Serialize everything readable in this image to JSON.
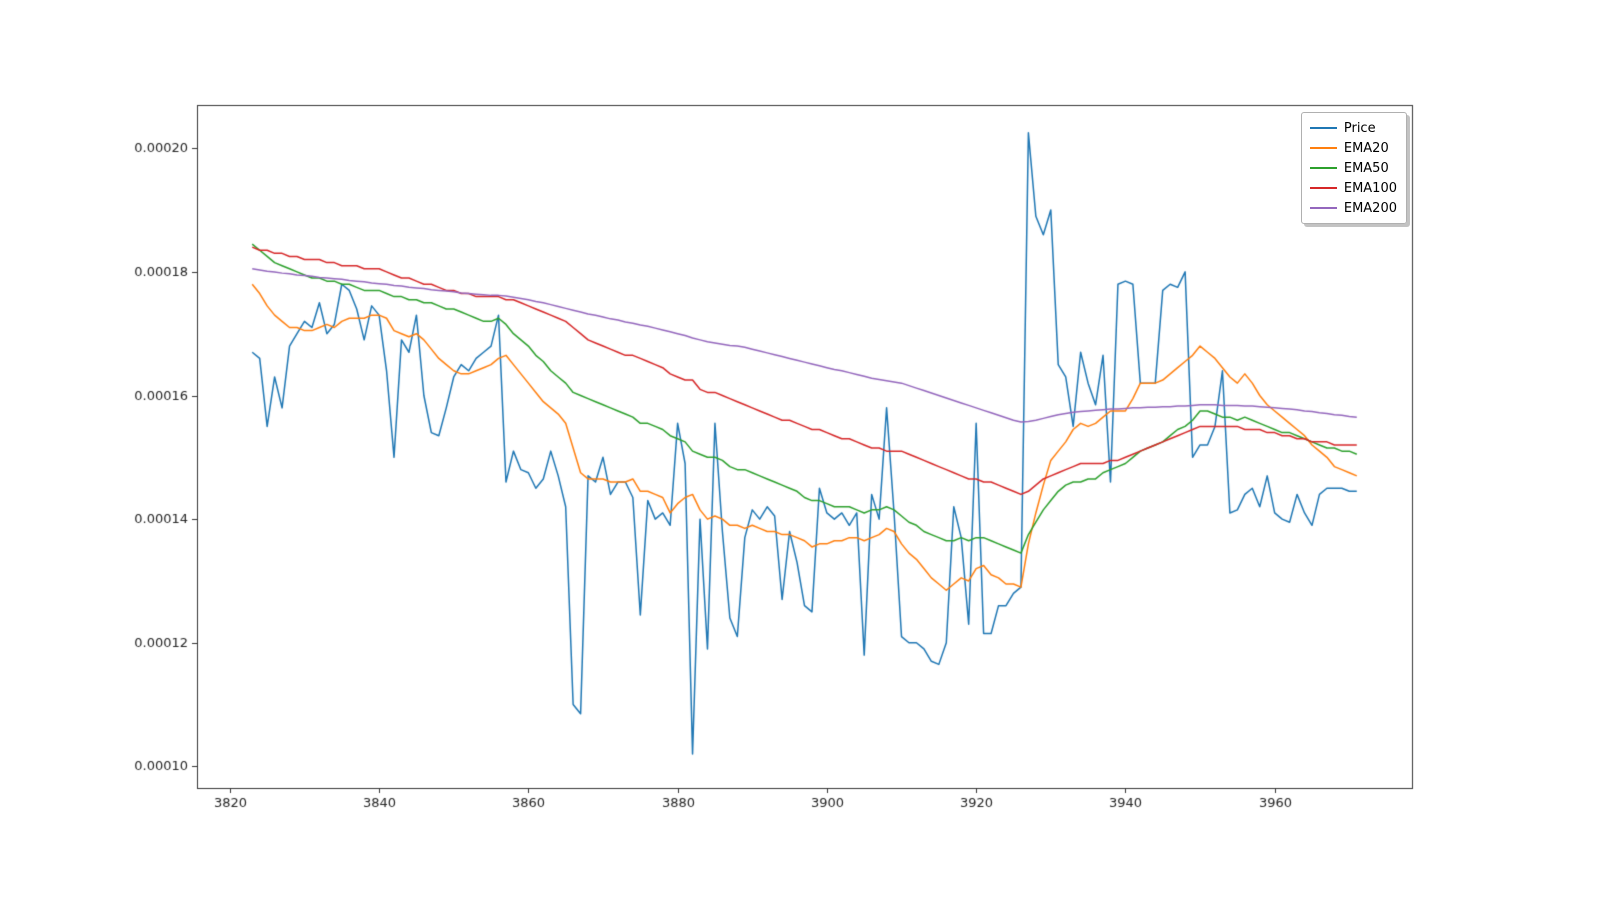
{
  "figure": {
    "background": "#ffffff",
    "spine_color": "#333333",
    "tick_text_color": "#262626"
  },
  "chart_data": {
    "type": "line",
    "title": "",
    "xlabel": "",
    "ylabel": "",
    "grid": false,
    "legend_position": "upper right",
    "x_start": 3823,
    "x_step": 1,
    "y_value_multiplier": 1e-06,
    "xlim": [
      3815.6,
      3978.4
    ],
    "ylim": [
      9.65e-05,
      0.000207
    ],
    "x_ticks": [
      3820,
      3840,
      3860,
      3880,
      3900,
      3920,
      3940,
      3960
    ],
    "x_tick_labels": [
      "3820",
      "3840",
      "3860",
      "3880",
      "3900",
      "3920",
      "3940",
      "3960"
    ],
    "y_ticks": [
      0.0001,
      0.00012,
      0.00014,
      0.00016,
      0.00018,
      0.0002
    ],
    "y_tick_labels": [
      "0.00010",
      "0.00012",
      "0.00014",
      "0.00016",
      "0.00018",
      "0.00020"
    ],
    "series": [
      {
        "name": "Price",
        "color": "#1f77b4",
        "values": [
          167,
          166,
          155,
          163,
          158,
          168,
          170,
          172,
          171,
          175,
          170,
          171.5,
          178,
          177,
          174,
          169,
          174.5,
          173,
          164,
          150,
          169,
          167,
          173,
          160,
          154,
          153.5,
          158,
          163,
          165,
          164,
          166,
          167,
          168,
          173,
          146,
          151,
          148,
          147.5,
          145,
          146.5,
          151,
          147,
          142,
          110,
          108.5,
          147,
          146,
          150,
          144,
          146,
          146,
          143.5,
          124.5,
          143,
          140,
          141,
          139,
          155.5,
          149,
          102,
          140,
          119,
          155.5,
          138,
          124,
          121,
          137,
          141.5,
          140,
          142,
          140.5,
          127,
          138,
          133,
          126,
          125,
          145,
          141,
          140,
          141,
          139,
          141,
          118,
          144,
          140,
          158,
          141,
          121,
          120,
          120,
          119,
          117,
          116.5,
          120,
          142,
          137,
          123,
          155.5,
          121.5,
          121.5,
          126,
          126,
          128,
          129,
          202.5,
          189,
          186,
          190,
          165,
          163,
          155,
          167,
          162,
          158.5,
          166.5,
          146,
          178,
          178.5,
          178,
          162,
          162,
          162,
          177,
          178,
          177.5,
          180,
          150,
          152,
          152,
          155,
          164,
          141,
          141.5,
          144,
          145,
          142,
          147,
          141,
          140,
          139.5,
          144,
          141,
          139,
          144,
          145,
          145,
          145,
          144.5,
          144.5
        ]
      },
      {
        "name": "EMA20",
        "color": "#ff7f0e",
        "values": [
          178,
          176.5,
          174.5,
          173,
          172,
          171,
          171,
          170.5,
          170.5,
          171,
          171.5,
          171,
          172,
          172.5,
          172.5,
          172.5,
          173,
          173,
          172.5,
          170.5,
          170,
          169.5,
          170,
          169,
          167.5,
          166,
          165,
          164,
          163.5,
          163.5,
          164,
          164.5,
          165,
          166,
          166.5,
          165,
          163.5,
          162,
          160.5,
          159,
          158,
          157,
          155.5,
          151.5,
          147.5,
          146.5,
          146.5,
          146.5,
          146,
          146,
          146,
          146.5,
          144.5,
          144.5,
          144,
          143.5,
          141,
          142.5,
          143.5,
          144,
          141.5,
          140,
          140.5,
          140,
          139,
          139,
          138.5,
          139,
          138.5,
          138,
          138,
          137.5,
          137.5,
          137,
          136.5,
          135.5,
          136,
          136,
          136.5,
          136.5,
          137,
          137,
          136.5,
          137,
          137.5,
          138.5,
          138,
          136,
          134.5,
          133.5,
          132,
          130.5,
          129.5,
          128.5,
          129.5,
          130.5,
          130,
          132,
          132.5,
          131,
          130.5,
          129.5,
          129.5,
          129,
          136,
          141,
          145.5,
          149.5,
          151,
          152.5,
          154.5,
          155.5,
          155,
          155.5,
          156.5,
          157.5,
          157.5,
          157.5,
          159.5,
          162,
          162,
          162,
          162.5,
          163.5,
          164.5,
          165.5,
          166.5,
          168,
          167,
          166,
          164.5,
          163,
          162,
          163.5,
          162,
          160,
          158.5,
          157.5,
          156.5,
          155.5,
          154.5,
          153.5,
          152,
          151,
          150,
          148.5,
          148,
          147.5,
          147
        ]
      },
      {
        "name": "EMA50",
        "color": "#2ca02c",
        "values": [
          184.5,
          183.5,
          182.5,
          181.5,
          181,
          180.5,
          180,
          179.5,
          179,
          179,
          178.5,
          178.5,
          178,
          178,
          177.5,
          177,
          177,
          177,
          176.5,
          176,
          176,
          175.5,
          175.5,
          175,
          175,
          174.5,
          174,
          174,
          173.5,
          173,
          172.5,
          172,
          172,
          172.5,
          171.5,
          170,
          169,
          168,
          166.5,
          165.5,
          164,
          163,
          162,
          160.5,
          160,
          159.5,
          159,
          158.5,
          158,
          157.5,
          157,
          156.5,
          155.5,
          155.5,
          155,
          154.5,
          153.5,
          153,
          152.5,
          151,
          150.5,
          150,
          150,
          149.5,
          148.5,
          148,
          148,
          147.5,
          147,
          146.5,
          146,
          145.5,
          145,
          144.5,
          143.5,
          143,
          143,
          142.5,
          142,
          142,
          142,
          141.5,
          141,
          141.5,
          141.5,
          142,
          141.5,
          140.5,
          139.5,
          139,
          138,
          137.5,
          137,
          136.5,
          136.5,
          137,
          136.5,
          137,
          137,
          136.5,
          136,
          135.5,
          135,
          134.5,
          137.5,
          139.5,
          141.5,
          143,
          144.5,
          145.5,
          146,
          146,
          146.5,
          146.5,
          147.5,
          148,
          148.5,
          149,
          150,
          151,
          151.5,
          152,
          152.5,
          153.5,
          154.5,
          155,
          156,
          157.5,
          157.5,
          157,
          156.5,
          156.5,
          156,
          156.5,
          156,
          155.5,
          155,
          154.5,
          154,
          154,
          153.5,
          153,
          152.5,
          152,
          151.5,
          151.5,
          151,
          151,
          150.5
        ]
      },
      {
        "name": "EMA100",
        "color": "#d62728",
        "values": [
          184,
          183.5,
          183.5,
          183,
          183,
          182.5,
          182.5,
          182,
          182,
          182,
          181.5,
          181.5,
          181,
          181,
          181,
          180.5,
          180.5,
          180.5,
          180,
          179.5,
          179,
          179,
          178.5,
          178,
          178,
          177.5,
          177,
          177,
          176.5,
          176.5,
          176,
          176,
          176,
          176,
          175.5,
          175.5,
          175,
          174.5,
          174,
          173.5,
          173,
          172.5,
          172,
          171,
          170,
          169,
          168.5,
          168,
          167.5,
          167,
          166.5,
          166.5,
          166,
          165.5,
          165,
          164.5,
          163.5,
          163,
          162.5,
          162.5,
          161,
          160.5,
          160.5,
          160,
          159.5,
          159,
          158.5,
          158,
          157.5,
          157,
          156.5,
          156,
          156,
          155.5,
          155,
          154.5,
          154.5,
          154,
          153.5,
          153,
          153,
          152.5,
          152,
          151.5,
          151.5,
          151,
          151,
          151,
          150.5,
          150,
          149.5,
          149,
          148.5,
          148,
          147.5,
          147,
          146.5,
          146.5,
          146,
          146,
          145.5,
          145,
          144.5,
          144,
          144.5,
          145.5,
          146.5,
          147,
          147.5,
          148,
          148.5,
          149,
          149,
          149,
          149,
          149.5,
          149.5,
          150,
          150.5,
          151,
          151.5,
          152,
          152.5,
          153,
          153.5,
          154,
          154.5,
          155,
          155,
          155,
          155,
          155,
          155,
          154.5,
          154.5,
          154.5,
          154,
          154,
          153.5,
          153.5,
          153,
          153,
          152.5,
          152.5,
          152.5,
          152,
          152,
          152,
          152
        ]
      },
      {
        "name": "EMA200",
        "color": "#9467bd",
        "values": [
          180.5,
          180.3,
          180.1,
          180,
          179.8,
          179.7,
          179.5,
          179.4,
          179.3,
          179.1,
          179,
          178.9,
          178.8,
          178.6,
          178.5,
          178.4,
          178.2,
          178.1,
          178,
          177.8,
          177.7,
          177.5,
          177.4,
          177.3,
          177.1,
          177,
          176.9,
          176.8,
          176.6,
          176.5,
          176.4,
          176.3,
          176.2,
          176.2,
          176.1,
          175.9,
          175.7,
          175.5,
          175.2,
          175,
          174.7,
          174.4,
          174.1,
          173.8,
          173.5,
          173.2,
          173,
          172.7,
          172.4,
          172.2,
          171.9,
          171.7,
          171.4,
          171.2,
          170.9,
          170.6,
          170.3,
          170,
          169.7,
          169.3,
          169,
          168.7,
          168.5,
          168.3,
          168.1,
          168,
          167.8,
          167.5,
          167.2,
          166.9,
          166.6,
          166.3,
          166,
          165.7,
          165.4,
          165.1,
          164.8,
          164.5,
          164.2,
          164,
          163.7,
          163.4,
          163.1,
          162.8,
          162.6,
          162.4,
          162.2,
          162,
          161.6,
          161.2,
          160.8,
          160.4,
          160,
          159.6,
          159.2,
          158.8,
          158.4,
          158,
          157.6,
          157.2,
          156.8,
          156.4,
          156,
          155.7,
          155.8,
          156,
          156.3,
          156.6,
          156.9,
          157.1,
          157.3,
          157.4,
          157.5,
          157.6,
          157.7,
          157.8,
          157.8,
          157.9,
          158,
          158,
          158.1,
          158.1,
          158.2,
          158.2,
          158.3,
          158.3,
          158.4,
          158.5,
          158.5,
          158.5,
          158.4,
          158.4,
          158.4,
          158.3,
          158.3,
          158.2,
          158.1,
          158,
          157.9,
          157.8,
          157.7,
          157.5,
          157.4,
          157.2,
          157.1,
          156.9,
          156.8,
          156.6,
          156.5
        ]
      }
    ]
  }
}
